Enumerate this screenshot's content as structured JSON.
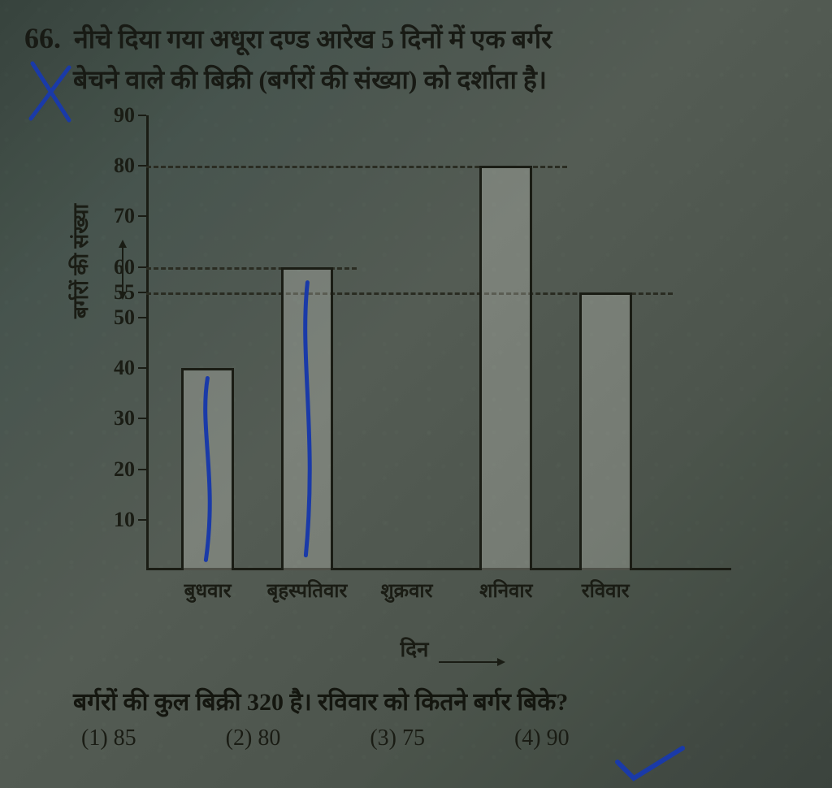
{
  "question": {
    "number": "66.",
    "line1": "नीचे दिया गया अधूरा दण्ड आरेख 5 दिनों में एक बर्गर",
    "line2": "बेचने वाले की बिक्री (बर्गरों की संख्या) को दर्शाता है।"
  },
  "chart": {
    "type": "bar",
    "ylabel": "बर्गरों की संख्या",
    "xlabel": "दिन",
    "ylim": [
      0,
      90
    ],
    "yticks": [
      10,
      20,
      30,
      40,
      50,
      55,
      60,
      70,
      80,
      90
    ],
    "gridlines": [
      {
        "at": 80,
        "right_pct": 72
      },
      {
        "at": 60,
        "right_pct": 36
      },
      {
        "at": 55,
        "right_pct": 90
      }
    ],
    "colors": {
      "axis": "#1a1c14",
      "bar_border": "#1a1c14",
      "bar_fill": "rgba(240,240,230,0.25)",
      "grid": "#2a2c22",
      "text": "#1a1c14",
      "page_bg_stops": [
        "#3a4640",
        "#4a5650",
        "#565e56",
        "#4e564e",
        "#3e4640"
      ],
      "pen_blue": "#1a3aa8"
    },
    "bar_width_pct": 9,
    "bar_gap_pct": 8,
    "first_bar_left_pct": 6,
    "categories": [
      "बुधवार",
      "बृहस्पतिवार",
      "शुक्रवार",
      "शनिवार",
      "रविवार"
    ],
    "values": [
      40,
      60,
      null,
      80,
      55
    ],
    "hidden_bar_index": 2,
    "label_fontsize": 24,
    "tick_fontsize": 26
  },
  "subquestion": "बर्गरों की कुल बिक्री 320 है। रविवार को कितने बर्गर बिके?",
  "options": [
    {
      "key": "(1)",
      "text": "85"
    },
    {
      "key": "(2)",
      "text": "80"
    },
    {
      "key": "(3)",
      "text": "75"
    },
    {
      "key": "(4)",
      "text": "90"
    }
  ],
  "pen_marks": {
    "cross_near_line2_left": true,
    "blue_strokes_in_bars": [
      0,
      1
    ],
    "tick_on_option_index": 3
  }
}
